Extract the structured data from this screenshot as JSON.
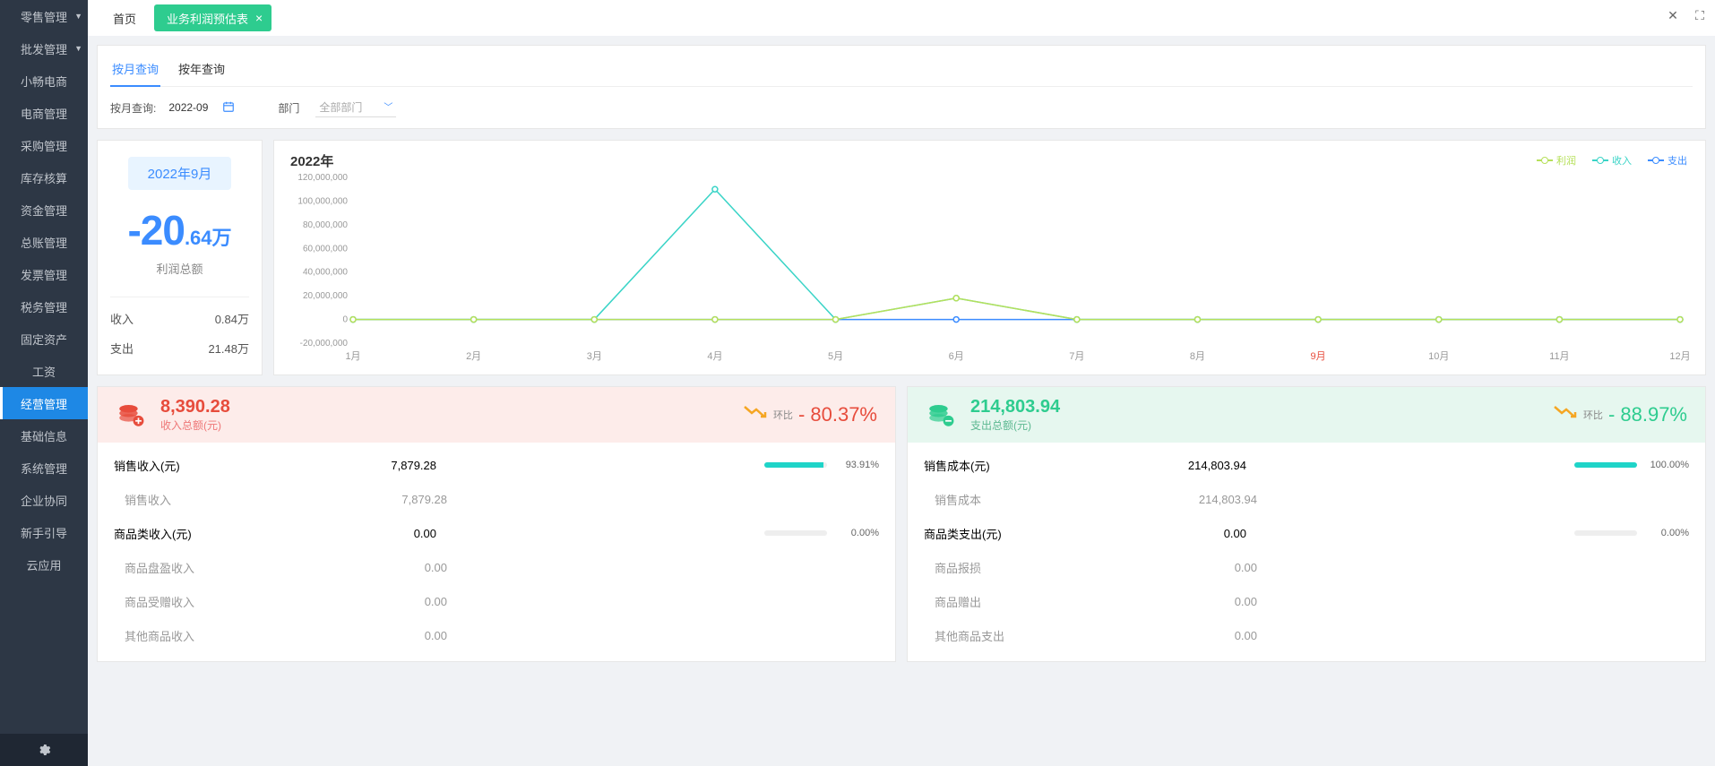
{
  "sidebar": {
    "items": [
      {
        "label": "零售管理",
        "has_caret": true
      },
      {
        "label": "批发管理",
        "has_caret": true
      },
      {
        "label": "小畅电商"
      },
      {
        "label": "电商管理"
      },
      {
        "label": "采购管理"
      },
      {
        "label": "库存核算"
      },
      {
        "label": "资金管理"
      },
      {
        "label": "总账管理"
      },
      {
        "label": "发票管理"
      },
      {
        "label": "税务管理"
      },
      {
        "label": "固定资产"
      },
      {
        "label": "工资"
      },
      {
        "label": "经营管理",
        "active": true
      },
      {
        "label": "基础信息"
      },
      {
        "label": "系统管理"
      },
      {
        "label": "企业协同"
      },
      {
        "label": "新手引导"
      },
      {
        "label": "云应用"
      }
    ]
  },
  "tabs": {
    "home": "首页",
    "active": "业务利润预估表"
  },
  "filter": {
    "tab_month": "按月查询",
    "tab_year": "按年查询",
    "month_label": "按月查询:",
    "month_value": "2022-09",
    "dept_label": "部门",
    "dept_placeholder": "全部部门"
  },
  "summary": {
    "period": "2022年9月",
    "profit_int": "-20",
    "profit_dec": ".64万",
    "profit_label": "利润总额",
    "income_label": "收入",
    "income_value": "0.84万",
    "expense_label": "支出",
    "expense_value": "21.48万"
  },
  "chart": {
    "title": "2022年",
    "legend": {
      "profit": "利润",
      "income": "收入",
      "expense": "支出"
    },
    "colors": {
      "profit": "#b6e05a",
      "income": "#3ad4c7",
      "expense": "#3b8cff"
    },
    "x_labels": [
      "1月",
      "2月",
      "3月",
      "4月",
      "5月",
      "6月",
      "7月",
      "8月",
      "9月",
      "10月",
      "11月",
      "12月"
    ],
    "highlight_x_index": 8,
    "y_labels": [
      "-20,000,000",
      "0",
      "20,000,000",
      "40,000,000",
      "60,000,000",
      "80,000,000",
      "100,000,000",
      "120,000,000"
    ],
    "y_min": -20000000,
    "y_max": 120000000,
    "series": {
      "profit": [
        0,
        0,
        0,
        0,
        0,
        18000000,
        0,
        0,
        0,
        0,
        0,
        0
      ],
      "income": [
        0,
        0,
        0,
        110000000,
        0,
        18000000,
        0,
        0,
        0,
        0,
        0,
        0
      ],
      "expense": [
        0,
        0,
        0,
        0,
        0,
        0,
        0,
        0,
        0,
        0,
        0,
        0
      ]
    }
  },
  "income_panel": {
    "amount": "8,390.28",
    "sub": "收入总额(元)",
    "hb": "环比",
    "pct": "- 80.37%",
    "rows": [
      {
        "lbl": "销售收入(元)",
        "val": "7,879.28",
        "pct": "93.91%",
        "fill": 93.91
      },
      {
        "lbl": "销售收入",
        "val": "7,879.28",
        "sub": true
      },
      {
        "lbl": "商品类收入(元)",
        "val": "0.00",
        "pct": "0.00%",
        "fill": 0
      },
      {
        "lbl": "商品盘盈收入",
        "val": "0.00",
        "sub": true
      },
      {
        "lbl": "商品受赠收入",
        "val": "0.00",
        "sub": true
      },
      {
        "lbl": "其他商品收入",
        "val": "0.00",
        "sub": true
      }
    ]
  },
  "expense_panel": {
    "amount": "214,803.94",
    "sub": "支出总额(元)",
    "hb": "环比",
    "pct": "- 88.97%",
    "rows": [
      {
        "lbl": "销售成本(元)",
        "val": "214,803.94",
        "pct": "100.00%",
        "fill": 100
      },
      {
        "lbl": "销售成本",
        "val": "214,803.94",
        "sub": true
      },
      {
        "lbl": "商品类支出(元)",
        "val": "0.00",
        "pct": "0.00%",
        "fill": 0
      },
      {
        "lbl": "商品报损",
        "val": "0.00",
        "sub": true
      },
      {
        "lbl": "商品赠出",
        "val": "0.00",
        "sub": true
      },
      {
        "lbl": "其他商品支出",
        "val": "0.00",
        "sub": true
      }
    ]
  }
}
